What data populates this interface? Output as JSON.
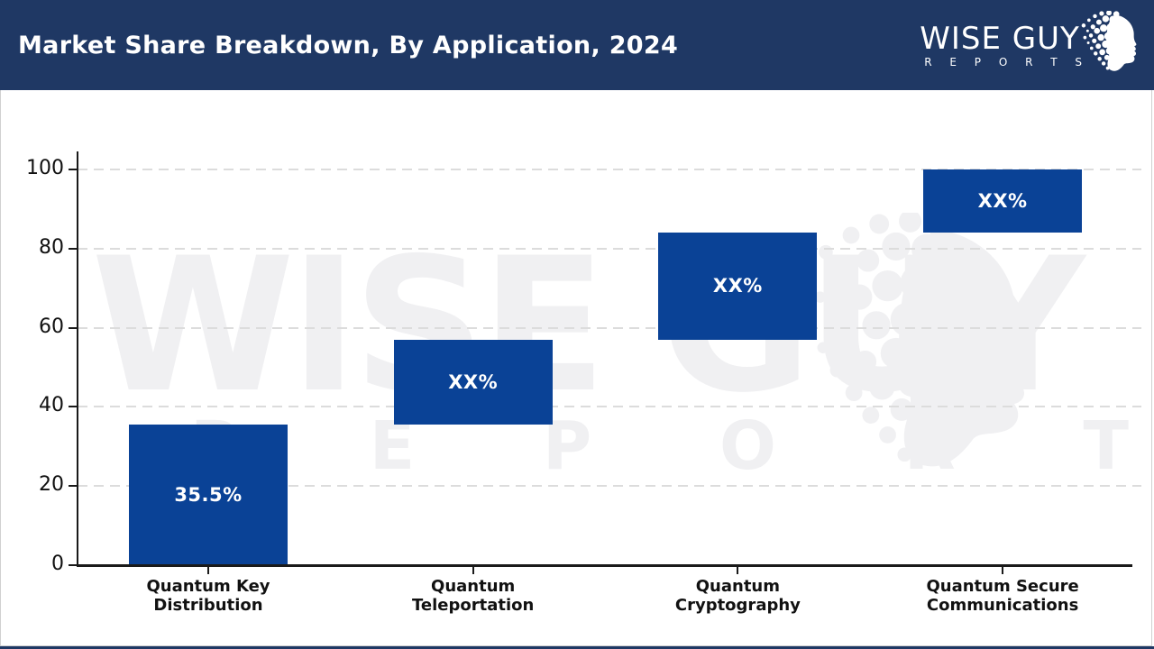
{
  "header": {
    "title": "Market Share Breakdown, By Application, 2024",
    "bg_color": "#1f3864",
    "logo": {
      "line1": "WISE GUY",
      "line2": "R E P O R T S",
      "icon": "head-profile-dots-icon"
    }
  },
  "watermark": {
    "line1": "WISE GUY",
    "line2": "R E P O R T S",
    "icon": "head-profile-dots-icon",
    "color": "#f0f0f2"
  },
  "chart_data": {
    "type": "bar",
    "variant": "waterfall",
    "title": "Market Share Breakdown, By Application, 2024",
    "categories": [
      {
        "name": "Quantum Key Distribution",
        "lines": [
          "Quantum Key",
          "Distribution"
        ]
      },
      {
        "name": "Quantum Teleportation",
        "lines": [
          "Quantum",
          "Teleportation"
        ]
      },
      {
        "name": "Quantum Cryptography",
        "lines": [
          "Quantum",
          "Cryptography"
        ]
      },
      {
        "name": "Quantum Secure Communications",
        "lines": [
          "Quantum Secure",
          "Communications"
        ]
      }
    ],
    "segments": [
      {
        "category": "Quantum Key Distribution",
        "start": 0,
        "end": 35.5,
        "value": 35.5,
        "label": "35.5%"
      },
      {
        "category": "Quantum Teleportation",
        "start": 35.5,
        "end": 57,
        "value": 21.5,
        "label": "XX%"
      },
      {
        "category": "Quantum Cryptography",
        "start": 57,
        "end": 84,
        "value": 27,
        "label": "XX%"
      },
      {
        "category": "Quantum Secure Communications",
        "start": 84,
        "end": 100,
        "value": 16,
        "label": "XX%"
      }
    ],
    "xlabel": "",
    "ylabel": "",
    "ylim": [
      0,
      100
    ],
    "yticks": [
      0,
      20,
      40,
      60,
      80,
      100
    ],
    "grid": "horizontal-dashed",
    "legend": "none",
    "bar_color": "#0a4296",
    "bar_label_color": "#ffffff",
    "unit": "%"
  }
}
